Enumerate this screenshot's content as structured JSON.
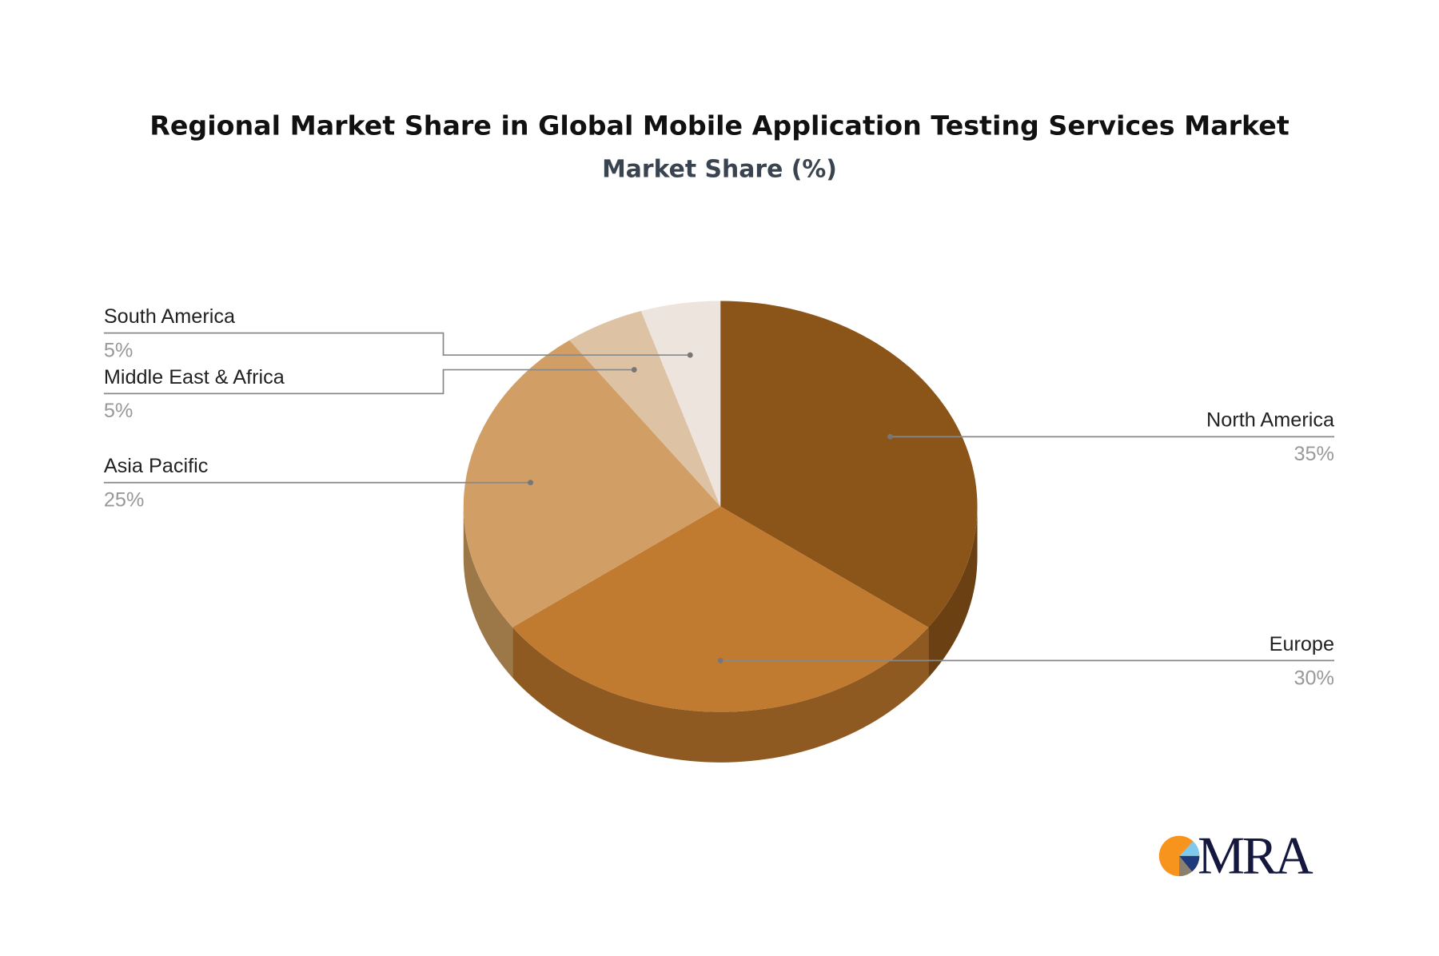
{
  "chart_data": {
    "type": "pie",
    "title": "Regional Market Share in Global Mobile Application Testing Services Market",
    "subtitle": "Market Share (%)",
    "categories": [
      "North America",
      "Europe",
      "Asia Pacific",
      "Middle East & Africa",
      "South America"
    ],
    "values": [
      35,
      30,
      25,
      5,
      5
    ],
    "labels": [
      "35%",
      "30%",
      "25%",
      "5%",
      "5%"
    ],
    "colors": [
      "#8B5519",
      "#C07B30",
      "#D19F66",
      "#DDC2A4",
      "#EDE4DD"
    ],
    "side_colors": [
      "#6B4113",
      "#8E5A22",
      "#9C7848",
      "#A8927A",
      "#B5ABA3"
    ],
    "style": "3d"
  },
  "logo": {
    "text": "MRA",
    "colors": [
      "#F7941D",
      "#7FC8EE",
      "#1F3A7A",
      "#8A8070"
    ]
  }
}
